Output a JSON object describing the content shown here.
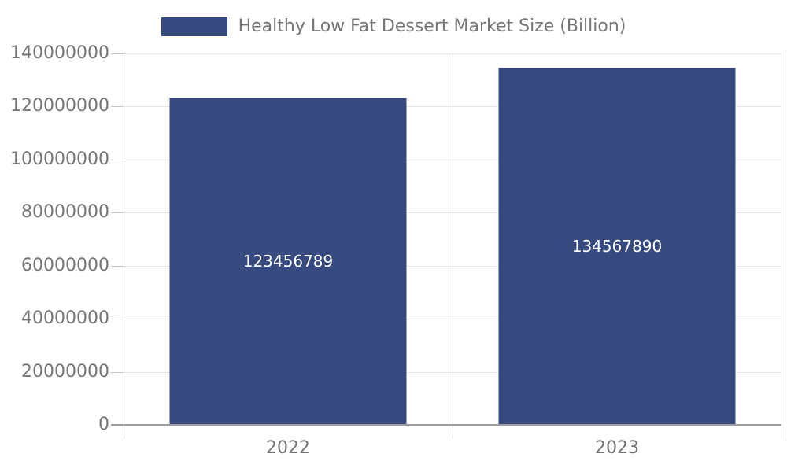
{
  "legend": {
    "label": "Healthy Low Fat Dessert Market Size (Billion)",
    "swatch_color": "#364a7f"
  },
  "chart_data": {
    "type": "bar",
    "title": "Healthy Low Fat Dessert Market Size (Billion)",
    "categories": [
      "2022",
      "2023"
    ],
    "values": [
      123456789,
      134567890
    ],
    "bar_labels": [
      "123456789",
      "134567890"
    ],
    "xlabel": "",
    "ylabel": "",
    "ylim": [
      0,
      140000000
    ],
    "yticks": [
      0,
      20000000,
      40000000,
      60000000,
      80000000,
      100000000,
      120000000,
      140000000
    ],
    "ytick_labels": [
      "0",
      "20000000",
      "40000000",
      "60000000",
      "80000000",
      "100000000",
      "120000000",
      "140000000"
    ],
    "grid": "horizontal gridlines plus vertical category-boundary lines",
    "legend_position": "top-center",
    "colors": {
      "bar": "#364a7f",
      "bar_border": "#9aa3c1",
      "value_label": "#ffffff",
      "tick_text": "#757575",
      "grid": "#e3e3e3",
      "axis": "#c2c2c2",
      "baseline": "#9e9e9e",
      "boundary": "#dcdcdc"
    }
  }
}
